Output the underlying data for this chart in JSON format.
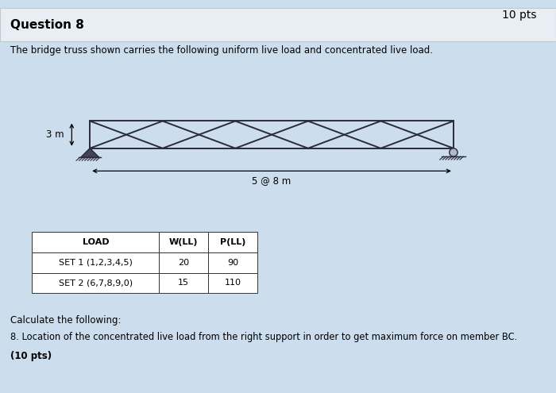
{
  "bg_color": "#ccdded",
  "title": "Question 8",
  "pts_text": "10 pts",
  "description": "The bridge truss shown carries the following uniform live load and concentrated live load.",
  "height_label": "3 m",
  "span_label": "5 @ 8 m",
  "table_headers": [
    "LOAD",
    "W(LL)",
    "P(LL)"
  ],
  "table_rows": [
    [
      "SET 1 (1,2,3,4,5)",
      "20",
      "90"
    ],
    [
      "SET 2 (6,7,8,9,0)",
      "15",
      "110"
    ]
  ],
  "calc_text": "Calculate the following:",
  "question_text": "8. Location of the concentrated live load from the right support in order to get maximum force on member BC.",
  "pts_note": "(10 pts)",
  "truss_color": "#2a2a3a",
  "title_bar_color": "#e8eef4",
  "title_bar_edge": "#c0c8d0"
}
